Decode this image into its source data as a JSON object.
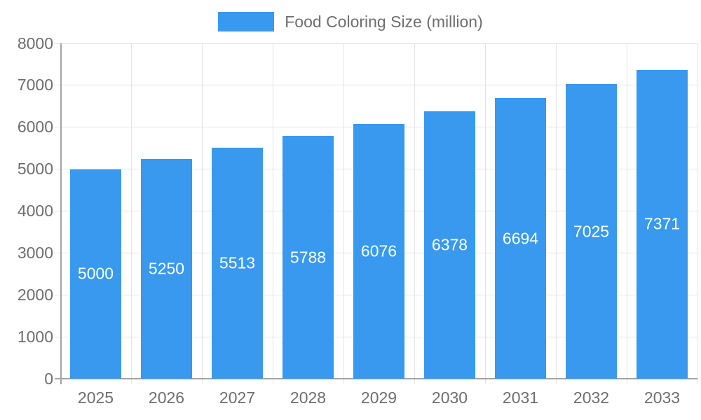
{
  "legend": {
    "label": "Food Coloring Size (million)",
    "swatch_color": "#3899ee"
  },
  "chart_data": {
    "type": "bar",
    "title": "Food Coloring Size (million)",
    "categories": [
      "2025",
      "2026",
      "2027",
      "2028",
      "2029",
      "2030",
      "2031",
      "2032",
      "2033"
    ],
    "series": [
      {
        "name": "Food Coloring Size (million)",
        "values": [
          5000,
          5250,
          5513,
          5788,
          6076,
          6378,
          6694,
          7025,
          7371
        ]
      }
    ],
    "xlabel": "",
    "ylabel": "",
    "ylim": [
      0,
      8000
    ],
    "ytick_step": 1000,
    "y_tick_labels": [
      "0",
      "1000",
      "2000",
      "3000",
      "4000",
      "5000",
      "6000",
      "7000",
      "8000"
    ],
    "grid": "both",
    "legend_position": "top-center",
    "bar_color": "#3899ee",
    "value_label_color": "#ffffff",
    "value_labels_shown": true,
    "gridline_color": "#e3e3e3",
    "axis_line_color": "#a3a3a3",
    "tick_text_color": "#6e6e6e"
  }
}
